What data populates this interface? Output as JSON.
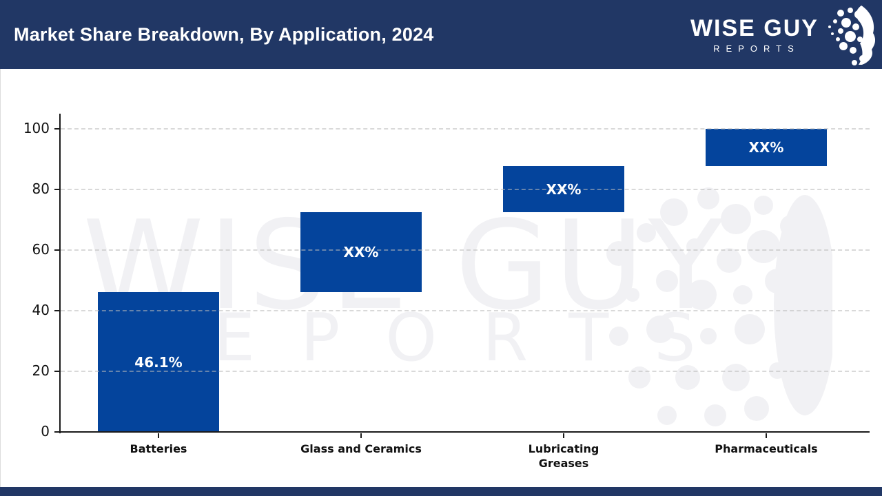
{
  "header": {
    "brand": {
      "line1": "WISE GUY",
      "line2": "REPORTS"
    },
    "bg_color": "#213765"
  },
  "watermark": {
    "line1": "WISE GUY",
    "line2": "REPORTS"
  },
  "chart_data": {
    "type": "bar",
    "subtype": "waterfall",
    "title": "Market Share Breakdown, By Application, 2024",
    "categories": [
      "Batteries",
      "Glass and Ceramics",
      "Lubricating\nGreases",
      "Pharmaceuticals"
    ],
    "segments": [
      {
        "category": "Batteries",
        "label": "46.1%",
        "start": 0,
        "end": 46.1,
        "value": 46.1
      },
      {
        "category": "Glass and Ceramics",
        "label": "XX%",
        "start": 46.1,
        "end": 72.5,
        "value": 26.4
      },
      {
        "category": "Lubricating Greases",
        "label": "XX%",
        "start": 72.5,
        "end": 87.7,
        "value": 15.2
      },
      {
        "category": "Pharmaceuticals",
        "label": "XX%",
        "start": 87.7,
        "end": 100,
        "value": 12.3
      }
    ],
    "xlabel": "",
    "ylabel": "",
    "yticks": [
      0,
      20,
      40,
      60,
      80,
      100
    ],
    "ylim": [
      0,
      100
    ],
    "grid": true,
    "legend": false,
    "bar_color": "#04449c",
    "axis_color": "#1a1a1a",
    "grid_color": "#d9d9d9",
    "label_color": "#ffffff"
  }
}
